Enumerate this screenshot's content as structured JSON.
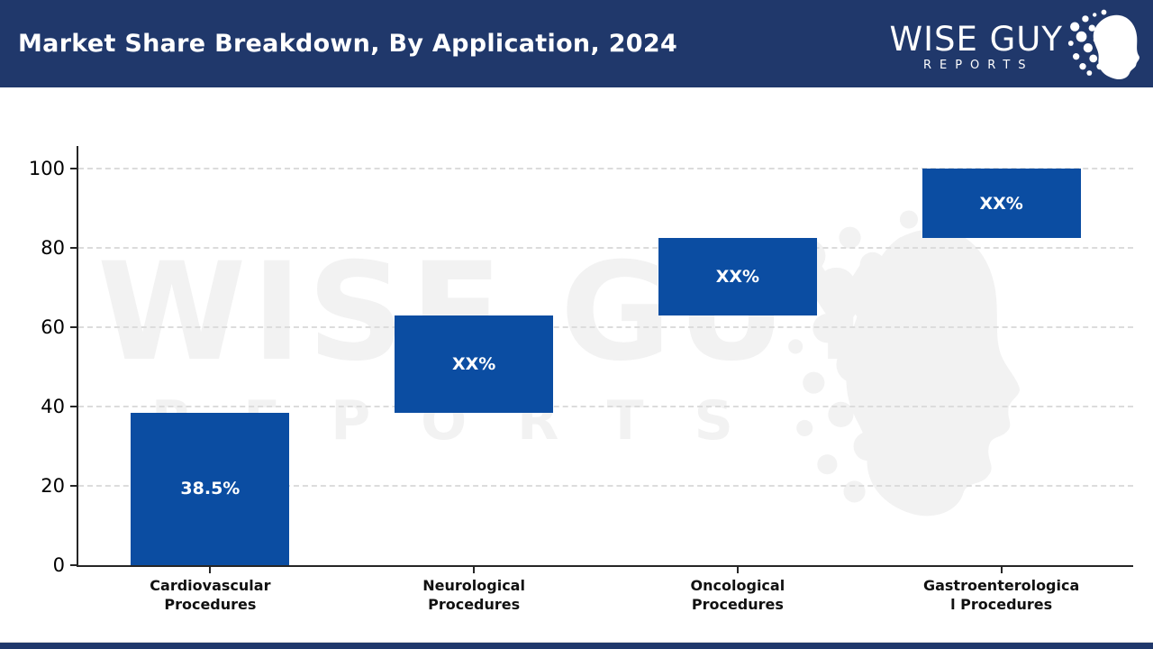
{
  "colors": {
    "navy": "#20386b",
    "bar_blue": "#0b4da2",
    "grid": "#dcdcdc",
    "axis": "#262626",
    "watermark": "#f2f2f2"
  },
  "header": {
    "title": "Market Share Breakdown, By Application, 2024",
    "logo": {
      "line1": "WISE GUY",
      "line2": "REPORTS"
    }
  },
  "watermark": {
    "line1": "WISE GUY",
    "line2": "REPORTS"
  },
  "chart_data": {
    "type": "bar",
    "subtype": "segmented-waterfall",
    "title": "Market Share Breakdown, By Application, 2024",
    "categories": [
      "Cardiovascular\nProcedures",
      "Neurological\nProcedures",
      "Oncological\nProcedures",
      "Gastroenterologica\nl Procedures"
    ],
    "series": [
      {
        "name": "Market share (%)",
        "segments": [
          {
            "category": "Cardiovascular Procedures",
            "start": 0,
            "end": 38.5,
            "label": "38.5%"
          },
          {
            "category": "Neurological Procedures",
            "start": 38.5,
            "end": 63,
            "label": "XX%"
          },
          {
            "category": "Oncological Procedures",
            "start": 63,
            "end": 82.5,
            "label": "XX%"
          },
          {
            "category": "Gastroenterological Procedures",
            "start": 82.5,
            "end": 100,
            "label": "XX%"
          }
        ]
      }
    ],
    "ylim": [
      0,
      100
    ],
    "yticks": [
      0,
      20,
      40,
      60,
      80,
      100
    ],
    "grid": "horizontal dashed",
    "legend": "none",
    "bar_color": "#0b4da2"
  }
}
